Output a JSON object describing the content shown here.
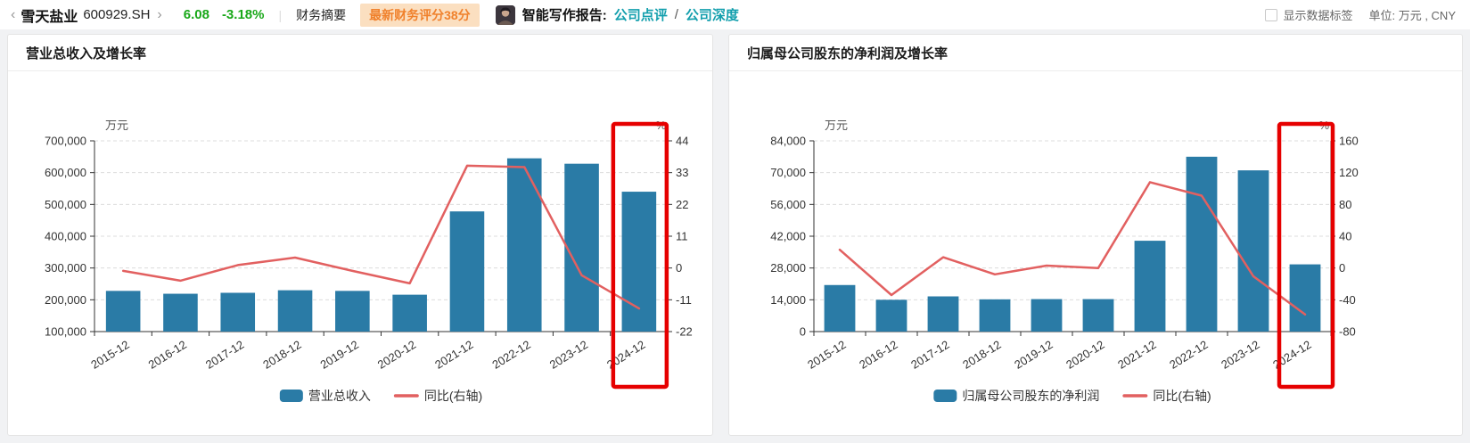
{
  "header": {
    "back_icon": "‹",
    "forward_icon": "›",
    "stock_name": "雪天盐业",
    "stock_code": "600929.SH",
    "price": "6.08",
    "change_percent": "-3.18%",
    "divider": "|",
    "finance_summary": "财务摘要",
    "score_badge": "最新财务评分38分",
    "ai_report_label": "智能写作报告:",
    "report_links": {
      "review": "公司点评",
      "separator": "/",
      "depth": "公司深度"
    },
    "show_data_labels": "显示数据标签",
    "show_data_labels_checked": false,
    "unit_text": "单位: 万元 , CNY"
  },
  "colors": {
    "bar": "#2a7ba6",
    "line": "#e26060",
    "highlight_box": "#e60000",
    "price_green": "#19a819",
    "link_teal": "#139fad",
    "badge_bg": "#fbdfc0",
    "badge_text": "#f0812c",
    "grid": "#dcdcdc",
    "axis": "#333333"
  },
  "chart_data": [
    {
      "type": "bar",
      "title": "营业总收入及增长率",
      "categories": [
        "2015-12",
        "2016-12",
        "2017-12",
        "2018-12",
        "2019-12",
        "2020-12",
        "2021-12",
        "2022-12",
        "2023-12",
        "2024-12"
      ],
      "series": [
        {
          "name": "营业总收入",
          "kind": "bar",
          "axis": "left",
          "values": [
            228000,
            219000,
            222000,
            230000,
            228000,
            216000,
            478000,
            645000,
            628000,
            540000
          ]
        },
        {
          "name": "同比(右轴)",
          "kind": "line",
          "axis": "right",
          "values": [
            -1.0,
            -4.4,
            1.0,
            3.6,
            -1.0,
            -5.3,
            35.4,
            34.9,
            -2.5,
            -14.0
          ]
        }
      ],
      "left_axis": {
        "unit": "万元",
        "min": 100000,
        "max": 700000,
        "ticks": [
          "700,000",
          "600,000",
          "500,000",
          "400,000",
          "300,000",
          "200,000",
          "100,000"
        ]
      },
      "right_axis": {
        "unit": "%",
        "min": -22,
        "max": 44,
        "ticks": [
          "44",
          "33",
          "22",
          "11",
          "0",
          "-11",
          "-22"
        ]
      },
      "grid": true,
      "legend_position": "bottom",
      "highlight_last_column": true
    },
    {
      "type": "bar",
      "title": "归属母公司股东的净利润及增长率",
      "categories": [
        "2015-12",
        "2016-12",
        "2017-12",
        "2018-12",
        "2019-12",
        "2020-12",
        "2021-12",
        "2022-12",
        "2023-12",
        "2024-12"
      ],
      "series": [
        {
          "name": "归属母公司股东的净利润",
          "kind": "bar",
          "axis": "left",
          "values": [
            20500,
            14000,
            15500,
            14200,
            14300,
            14300,
            40000,
            77000,
            71000,
            29600
          ]
        },
        {
          "name": "同比(右轴)",
          "kind": "line",
          "axis": "right",
          "values": [
            23,
            -34,
            13.5,
            -8,
            3,
            0,
            108,
            91,
            -10.5,
            -58.5
          ]
        }
      ],
      "left_axis": {
        "unit": "万元",
        "min": 0,
        "max": 84000,
        "ticks": [
          "84,000",
          "70,000",
          "56,000",
          "42,000",
          "28,000",
          "14,000",
          "0"
        ]
      },
      "right_axis": {
        "unit": "%",
        "min": -80,
        "max": 160,
        "ticks": [
          "160",
          "120",
          "80",
          "40",
          "0",
          "-40",
          "-80"
        ]
      },
      "grid": true,
      "legend_position": "bottom",
      "highlight_last_column": true
    }
  ]
}
